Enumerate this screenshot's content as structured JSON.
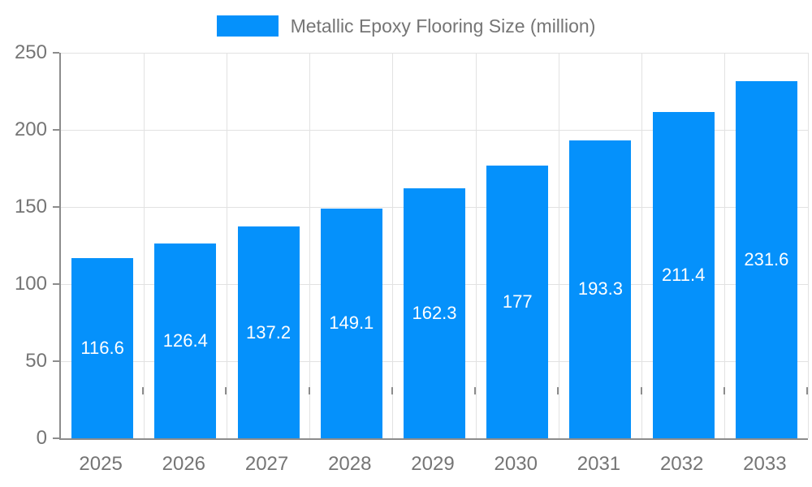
{
  "colors": {
    "bar": "#0591fb",
    "axis_line": "#8c8c8c",
    "grid_line": "#e2e2e2",
    "axis_text": "#757575",
    "bar_label_text": "#ffffff"
  },
  "legend": {
    "label": "Metallic Epoxy Flooring Size (million)"
  },
  "chart_data": {
    "type": "bar",
    "title": "Metallic Epoxy Flooring Size (million)",
    "series_name": "Metallic Epoxy Flooring Size (million)",
    "categories": [
      "2025",
      "2026",
      "2027",
      "2028",
      "2029",
      "2030",
      "2031",
      "2032",
      "2033"
    ],
    "values": [
      116.6,
      126.4,
      137.2,
      149.1,
      162.3,
      177,
      193.3,
      211.4,
      231.6
    ],
    "bar_labels": [
      "116.6",
      "126.4",
      "137.2",
      "149.1",
      "162.3",
      "177",
      "193.3",
      "211.4",
      "231.6"
    ],
    "xlabel": "",
    "ylabel": "",
    "ylim": [
      0,
      250
    ],
    "yticks": [
      0,
      50,
      100,
      150,
      200,
      250
    ],
    "grid": true,
    "legend_position": "top-center",
    "bar_label_position": "inside-center"
  }
}
